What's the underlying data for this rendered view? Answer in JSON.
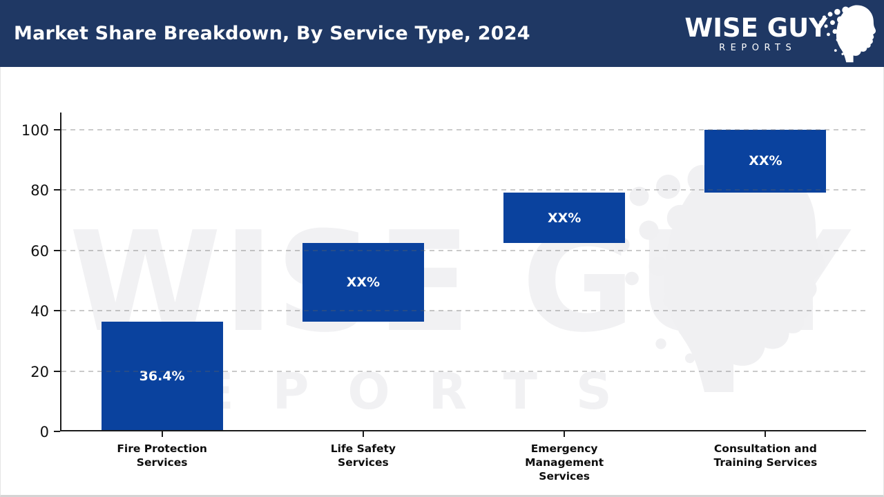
{
  "header": {
    "logo": {
      "name": "WISE GUY",
      "tagline": "REPORTS"
    }
  },
  "watermark": {
    "line1": "WISE GUY",
    "line2": "REPORTS"
  },
  "chart_data": {
    "type": "bar",
    "variant": "waterfall",
    "title": "Market Share Breakdown, By Service Type, 2024",
    "categories": [
      "Fire Protection Services",
      "Life Safety Services",
      "Emergency Management Services",
      "Consultation and Training Services"
    ],
    "category_label_lines": [
      [
        "Fire Protection",
        "Services"
      ],
      [
        "Life Safety",
        "Services"
      ],
      [
        "Emergency",
        "Management",
        "Services"
      ],
      [
        "Consultation and",
        "Training Services"
      ]
    ],
    "segments": [
      {
        "category": "Fire Protection Services",
        "start": 0,
        "end": 36.4,
        "label": "36.4%"
      },
      {
        "category": "Life Safety Services",
        "start": 36.4,
        "end": 62.3,
        "label": "XX%"
      },
      {
        "category": "Emergency Management Services",
        "start": 62.3,
        "end": 79,
        "label": "XX%"
      },
      {
        "category": "Consultation and Training Services",
        "start": 79,
        "end": 100,
        "label": "XX%"
      }
    ],
    "ylim": [
      0,
      100
    ],
    "yticks": [
      0,
      20,
      40,
      60,
      80,
      100
    ],
    "xlabel": "",
    "ylabel": "",
    "grid": "horizontal dashed",
    "legend": "none",
    "colors": {
      "bar": "#0a429e",
      "bar_label": "#ffffff",
      "header_bg": "#1f3864",
      "axis": "#1a1a1a",
      "gridline": "#cfcfcf",
      "watermark": "#f1f1f3"
    }
  }
}
